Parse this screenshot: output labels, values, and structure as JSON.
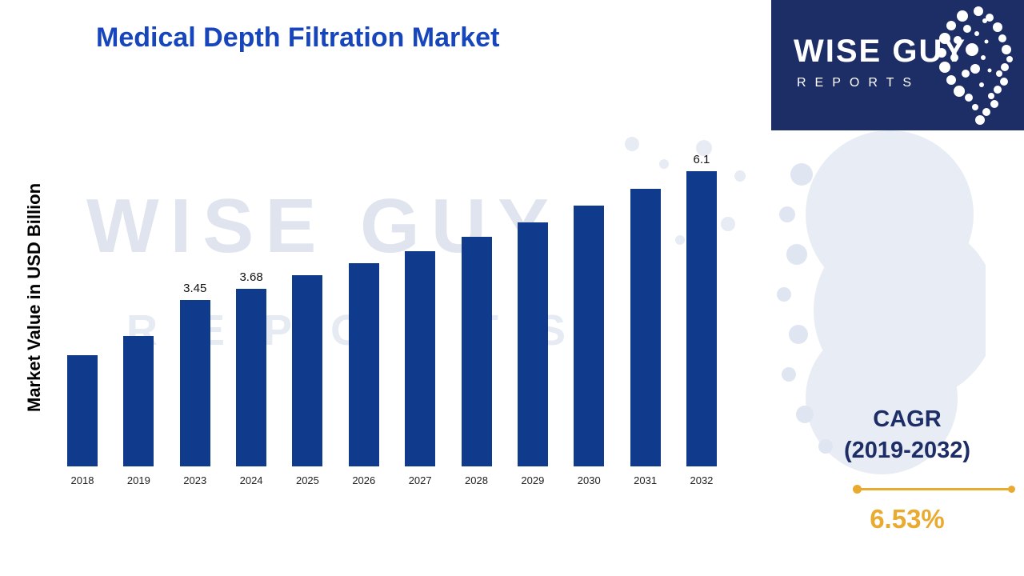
{
  "title": "Medical Depth Filtration Market",
  "y_axis_label": "Market Value in USD Billion",
  "logo": {
    "line1": "WISE GUY",
    "line2": "REPORTS"
  },
  "watermark": {
    "line1": "WISE GUY",
    "line2": "REPORTS"
  },
  "cagr": {
    "label": "CAGR",
    "range": "(2019-2032)",
    "value": "6.53%"
  },
  "colors": {
    "bar": "#103a8c",
    "title": "#1745bb",
    "logo_bg": "#1d2d66",
    "gold": "#eaa92f",
    "watermark": "#d9deea"
  },
  "chart_data": {
    "type": "bar",
    "title": "Medical Depth Filtration Market",
    "xlabel": "",
    "ylabel": "Market Value in USD Billion",
    "categories": [
      "2018",
      "2019",
      "2023",
      "2024",
      "2025",
      "2026",
      "2027",
      "2028",
      "2029",
      "2030",
      "2031",
      "2032"
    ],
    "values": [
      2.3,
      2.7,
      3.45,
      3.68,
      3.95,
      4.2,
      4.45,
      4.75,
      5.05,
      5.4,
      5.75,
      6.1
    ],
    "data_labels": [
      "",
      "",
      "3.45",
      "3.68",
      "",
      "",
      "",
      "",
      "",
      "",
      "",
      "6.1"
    ],
    "ylim": [
      0,
      7
    ],
    "grid": false,
    "legend": "none",
    "unit": "USD Billion"
  }
}
